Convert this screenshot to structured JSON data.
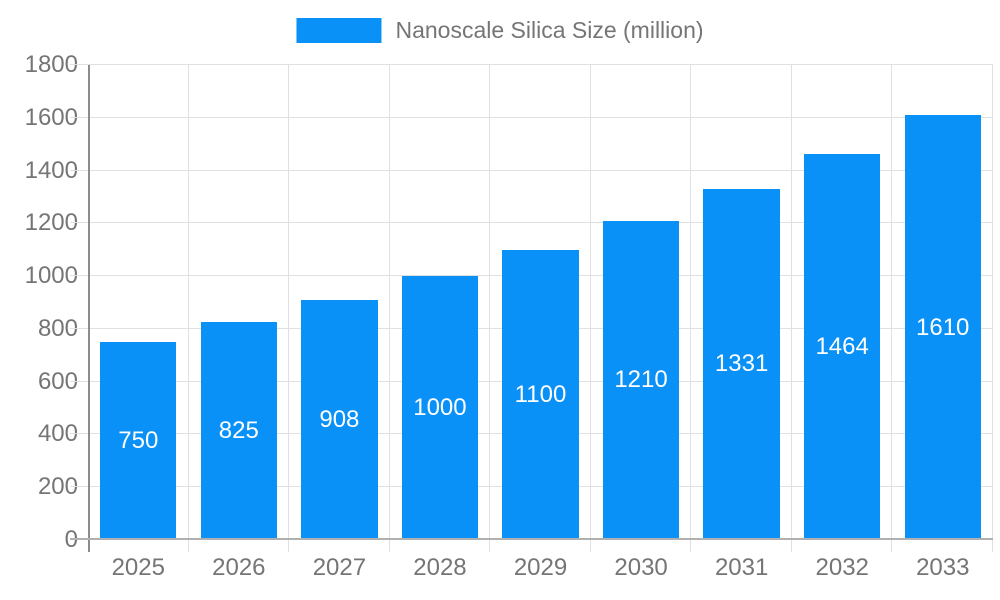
{
  "legend": {
    "label": "Nanoscale Silica Size (million)"
  },
  "chart_data": {
    "type": "bar",
    "title": "Nanoscale Silica Size (million)",
    "categories": [
      "2025",
      "2026",
      "2027",
      "2028",
      "2029",
      "2030",
      "2031",
      "2032",
      "2033"
    ],
    "values": [
      750,
      825,
      908,
      1000,
      1100,
      1210,
      1331,
      1464,
      1610
    ],
    "xlabel": "",
    "ylabel": "",
    "ylim": [
      0,
      1800
    ],
    "yticks": [
      0,
      200,
      400,
      600,
      800,
      1000,
      1200,
      1400,
      1600,
      1800
    ],
    "grid": true,
    "legend_position": "top-center",
    "bar_color": "#0991f7",
    "bar_label_color": "#ffffff",
    "axis_text_color": "#757575",
    "gridline_color": "#e0e0e0",
    "yaxis_line_color": "#8c8c8c",
    "baseline_color": "#b0b0b0"
  }
}
